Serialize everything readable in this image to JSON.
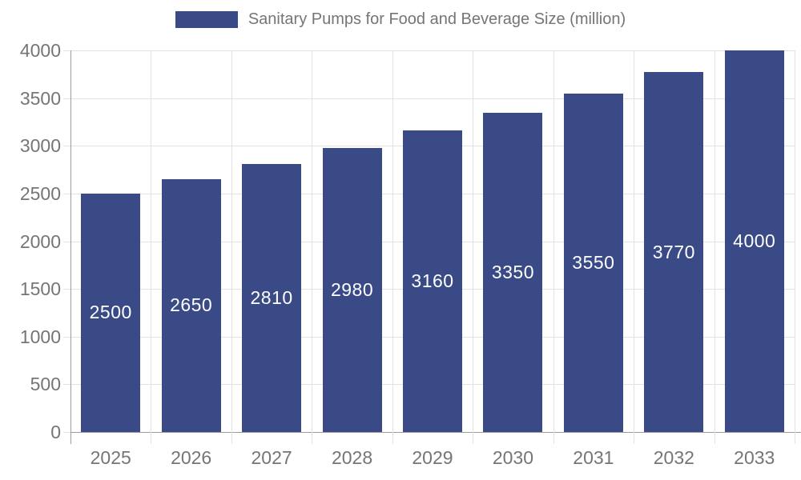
{
  "chart_data": {
    "type": "bar",
    "title": "Sanitary Pumps for Food and Beverage Size (million)",
    "categories": [
      "2025",
      "2026",
      "2027",
      "2028",
      "2029",
      "2030",
      "2031",
      "2032",
      "2033"
    ],
    "values": [
      2500,
      2650,
      2810,
      2980,
      3160,
      3350,
      3550,
      3770,
      4000
    ],
    "yticks": [
      0,
      500,
      1000,
      1500,
      2000,
      2500,
      3000,
      3500,
      4000
    ],
    "ylim": [
      0,
      4000
    ],
    "xlabel": "",
    "ylabel": "",
    "grid": true,
    "legend_position": "top-center",
    "bar_labels_inside": true,
    "colors": {
      "bar": "#394A87",
      "bar_label_text": "#FFFFFF",
      "axis_text": "#757575",
      "legend_text": "#757575",
      "gridline": "#E2E2E2",
      "axis_line": "#9B9B9B",
      "background": "#FFFFFF"
    }
  }
}
